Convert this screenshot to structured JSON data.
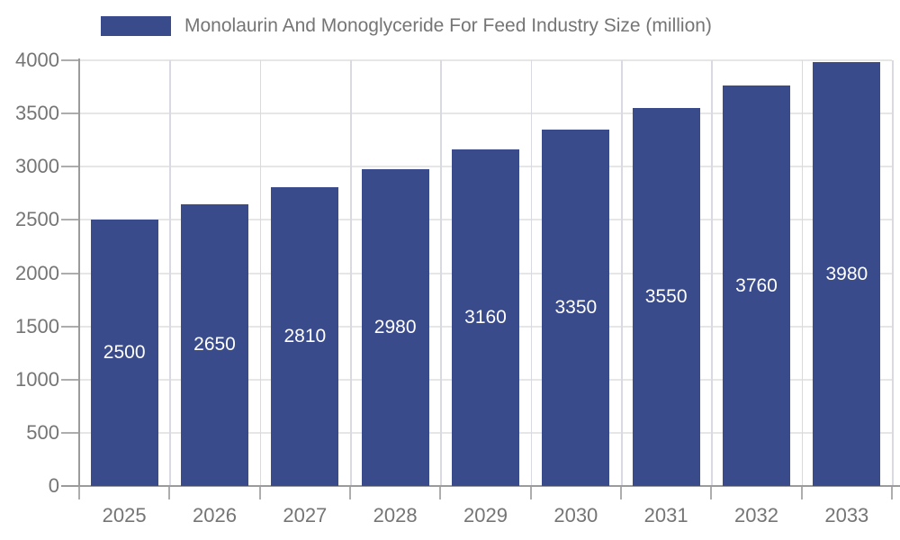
{
  "chart_data": {
    "type": "bar",
    "title": "Monolaurin And Monoglyceride For Feed Industry Size (million)",
    "categories": [
      "2025",
      "2026",
      "2027",
      "2028",
      "2029",
      "2030",
      "2031",
      "2032",
      "2033"
    ],
    "values": [
      2500,
      2650,
      2810,
      2980,
      3160,
      3350,
      3550,
      3760,
      3980
    ],
    "xlabel": "",
    "ylabel": "",
    "ylim": [
      0,
      4000
    ],
    "yticks": [
      0,
      500,
      1000,
      1500,
      2000,
      2500,
      3000,
      3500,
      4000
    ],
    "grid": true,
    "legend_position": "top",
    "value_label_position": "inside-middle",
    "colors": {
      "bar": "#3A4B8C",
      "bar_label_text": "#FFFFFF",
      "axis_line": "#9B9B9B",
      "tick_mark": "#ADADAD",
      "grid_horizontal": "#E6E6E6",
      "grid_vertical": "#D9D9E3",
      "text": "#757575",
      "background": "#FFFFFF"
    }
  }
}
